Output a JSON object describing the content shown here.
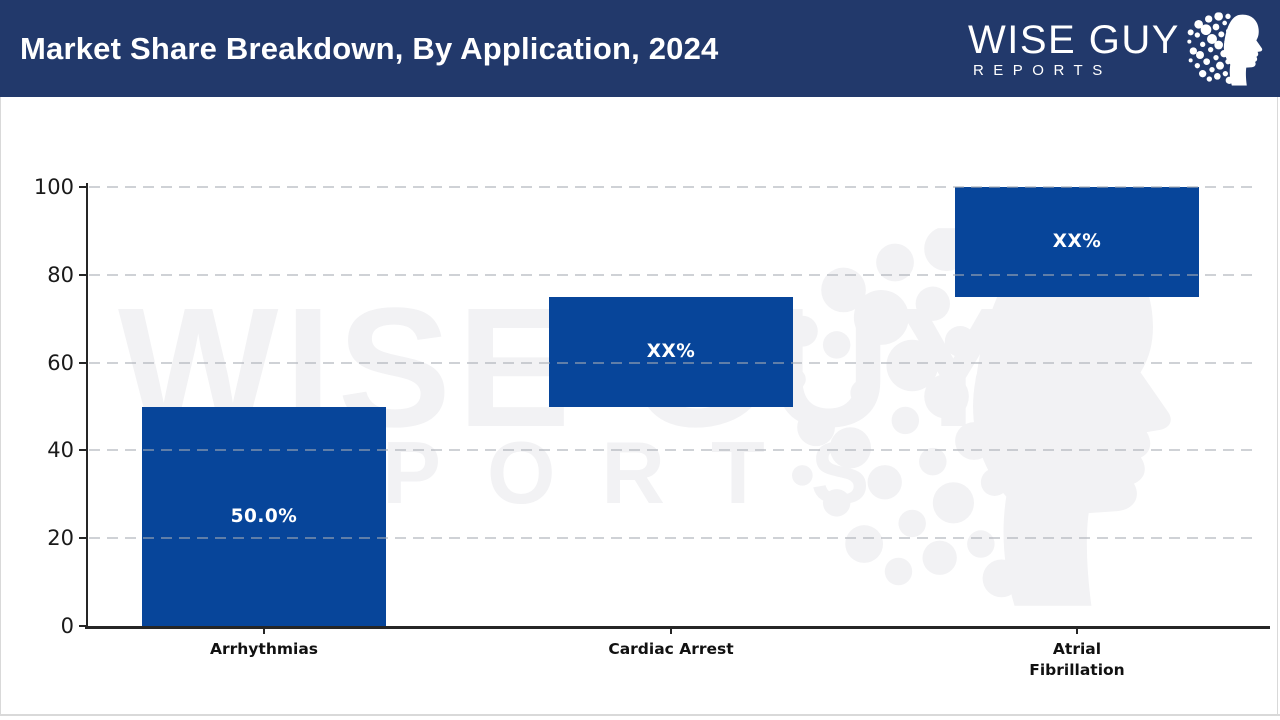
{
  "header": {
    "title": "Market Share Breakdown, By Application, 2024",
    "logo": {
      "primary": "WISE GUY",
      "secondary": "REPORTS"
    }
  },
  "watermark": {
    "line1": "WISE GUY",
    "line2": "REPORTS"
  },
  "chart_data": {
    "type": "bar",
    "subtype": "floating-segment-bars-waterfall-style",
    "title": "Market Share Breakdown, By Application, 2024",
    "categories": [
      "Arrhythmias",
      "Cardiac Arrest",
      "Atrial Fibrillation"
    ],
    "category_label_lines": [
      [
        "Arrhythmias"
      ],
      [
        "Cardiac Arrest"
      ],
      [
        "Atrial",
        "Fibrillation"
      ]
    ],
    "bars": [
      {
        "category": "Arrhythmias",
        "from": 0,
        "to": 50,
        "label": "50.0%"
      },
      {
        "category": "Cardiac Arrest",
        "from": 50,
        "to": 75,
        "label": "XX%"
      },
      {
        "category": "Atrial Fibrillation",
        "from": 75,
        "to": 100,
        "label": "XX%"
      }
    ],
    "xlabel": "",
    "ylabel": "",
    "ylim": [
      0,
      100
    ],
    "yticks": [
      0,
      20,
      40,
      60,
      80,
      100
    ],
    "grid": "horizontal dashed",
    "legend": "none",
    "bar_color": "#07459A"
  },
  "colors": {
    "header-bg": "#22396B",
    "bar-blue": "#07459A",
    "grid-line": "#AFB4BC",
    "axis": "#262626",
    "text-dark": "#1A1A1A",
    "watermark": "#F2F2F4",
    "bar-label": "#FFFFFF"
  }
}
